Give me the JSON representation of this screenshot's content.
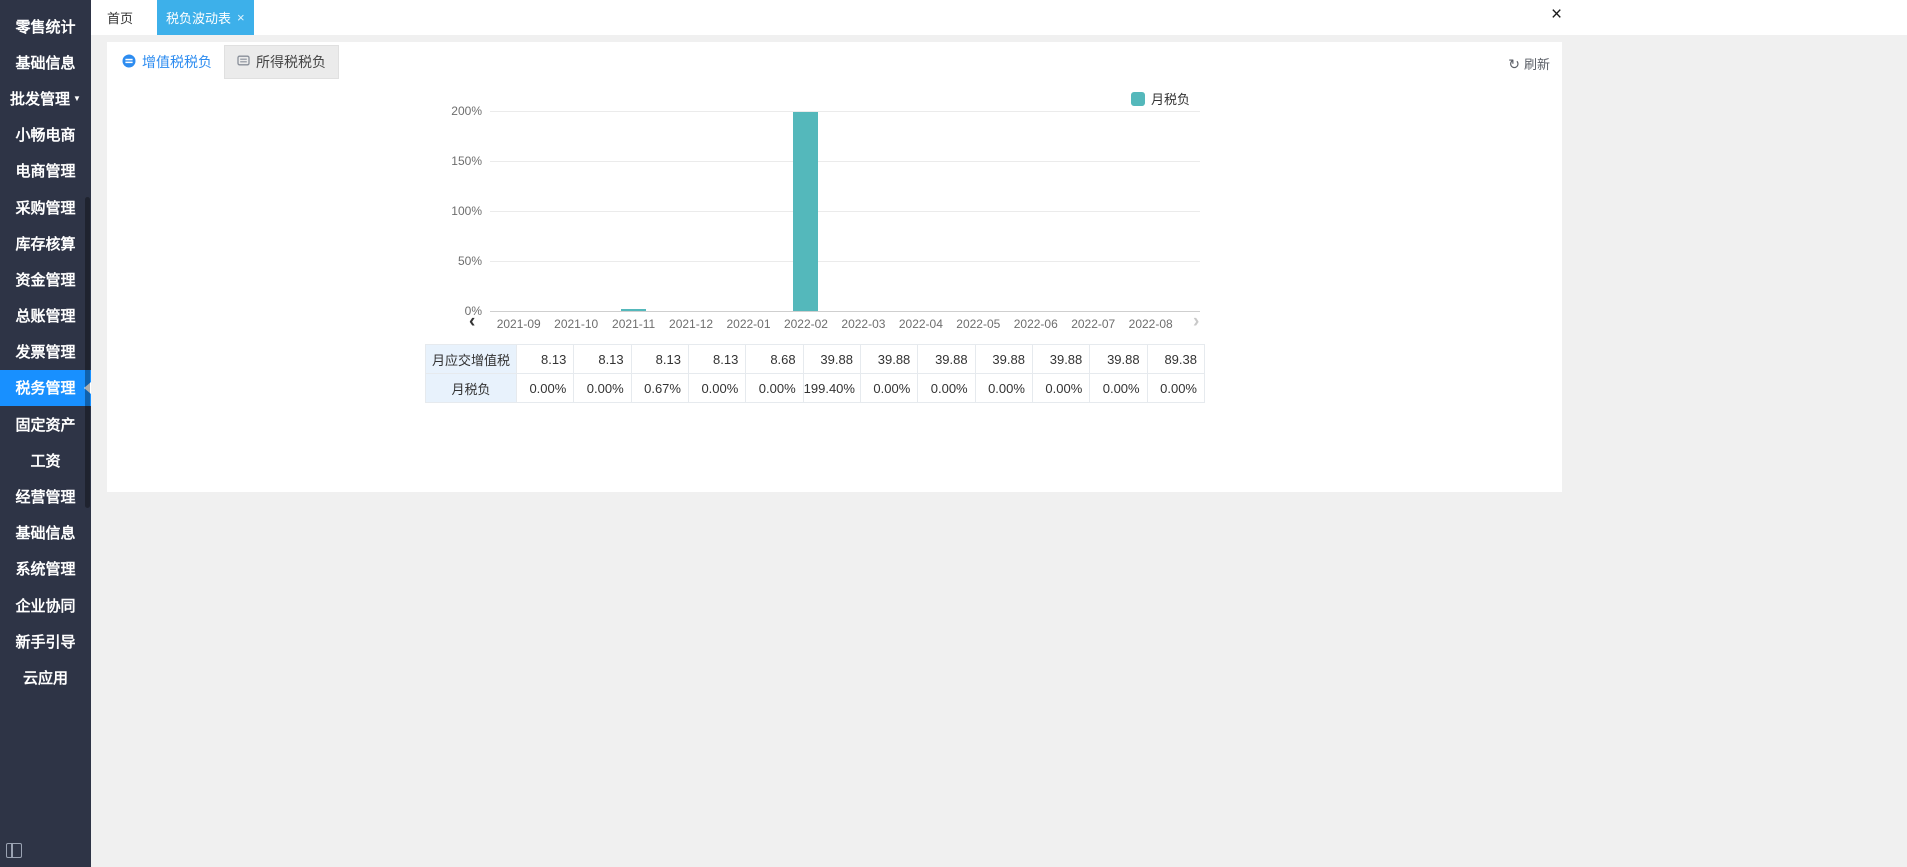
{
  "window": {
    "close_icon": "×"
  },
  "colors": {
    "sidebar_bg": "#2e3446",
    "sidebar_active_bg": "#1890ff",
    "topbar_active_tab_bg": "#3db0ea",
    "panel_tab_active_text": "#2d8cf0",
    "bar_teal": "#54b8bb",
    "content_bg": "#f0f0f0",
    "table_label_bg": "#e8f2fc"
  },
  "sidebar": {
    "items": [
      {
        "label": "零售统计"
      },
      {
        "label": "基础信息"
      },
      {
        "label": "批发管理",
        "caret": true
      },
      {
        "label": "小畅电商"
      },
      {
        "label": "电商管理"
      },
      {
        "label": "采购管理"
      },
      {
        "label": "库存核算"
      },
      {
        "label": "资金管理"
      },
      {
        "label": "总账管理"
      },
      {
        "label": "发票管理"
      },
      {
        "label": "税务管理",
        "active": true
      },
      {
        "label": "固定资产"
      },
      {
        "label": "工资"
      },
      {
        "label": "经营管理"
      },
      {
        "label": "基础信息"
      },
      {
        "label": "系统管理"
      },
      {
        "label": "企业协同"
      },
      {
        "label": "新手引导"
      },
      {
        "label": "云应用"
      }
    ]
  },
  "tabbar": {
    "home_tab": "首页",
    "active_tab": "税负波动表",
    "close_icon": "×"
  },
  "panel": {
    "tabs": [
      {
        "label": "增值税税负",
        "active": true
      },
      {
        "label": "所得税税负",
        "active": false
      }
    ],
    "refresh_label": "刷新",
    "refresh_icon": "↻"
  },
  "chart_data": {
    "type": "bar",
    "title": "",
    "categories": [
      "2021-09",
      "2021-10",
      "2021-11",
      "2021-12",
      "2022-01",
      "2022-02",
      "2022-03",
      "2022-04",
      "2022-05",
      "2022-06",
      "2022-07",
      "2022-08"
    ],
    "series": [
      {
        "name": "月税负",
        "values": [
          0,
          0,
          0.67,
          0,
          0,
          199.4,
          0,
          0,
          0,
          0,
          0,
          0
        ]
      }
    ],
    "legend": [
      {
        "label": "月税负",
        "color": "#54b8bb"
      }
    ],
    "legend_position": "top-right",
    "y_ticks": [
      0,
      50,
      100,
      150,
      200
    ],
    "y_tick_labels": [
      "0%",
      "50%",
      "100%",
      "150%",
      "200%"
    ],
    "ylim": [
      0,
      200
    ],
    "grid": true,
    "bar_color": "#54b8bb",
    "pager": {
      "prev": "‹",
      "next": "›"
    }
  },
  "table": {
    "rows": [
      {
        "label": "月应交增值税",
        "values": [
          "8.13",
          "8.13",
          "8.13",
          "8.13",
          "8.68",
          "39.88",
          "39.88",
          "39.88",
          "39.88",
          "39.88",
          "39.88",
          "89.38"
        ]
      },
      {
        "label": "月税负",
        "values": [
          "0.00%",
          "0.00%",
          "0.67%",
          "0.00%",
          "0.00%",
          "199.40%",
          "0.00%",
          "0.00%",
          "0.00%",
          "0.00%",
          "0.00%",
          "0.00%"
        ]
      }
    ]
  }
}
